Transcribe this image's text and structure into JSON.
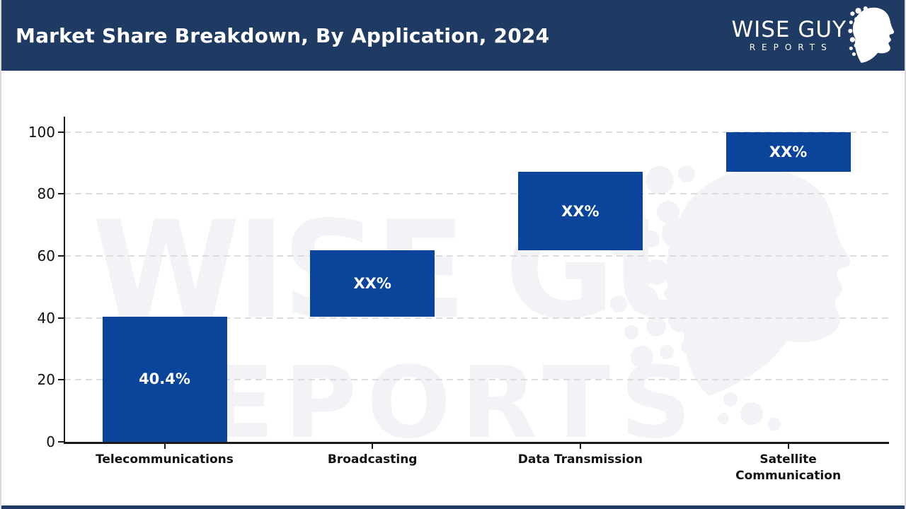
{
  "header": {
    "title": "Market Share Breakdown, By Application, 2024"
  },
  "logo": {
    "line1": "WISE GUY",
    "line2": "REPORTS",
    "face_icon": "dotted-head-profile"
  },
  "watermark": {
    "line1": "WISE GUY",
    "line2": "REPORTS",
    "face_icon": "dotted-head-profile"
  },
  "colors": {
    "header_bg": "#1f3a63",
    "bar_blue": "#0a459b",
    "grid_gray": "#dcdcdc",
    "axis_black": "#1a1a1a",
    "watermark_gray": "#f2f3f6",
    "label_white": "#ffffff"
  },
  "chart_data": {
    "type": "bar",
    "subtype": "waterfall",
    "title": "Market Share Breakdown, By Application, 2024",
    "xlabel": "",
    "ylabel": "",
    "categories": [
      "Telecommunications",
      "Broadcasting",
      "Data Transmission",
      "Satellite Communication"
    ],
    "segments": [
      {
        "category": "Telecommunications",
        "start": 0,
        "end": 40.4,
        "label": "40.4%"
      },
      {
        "category": "Broadcasting",
        "start": 40.4,
        "end": 61.7,
        "label": "XX%"
      },
      {
        "category": "Data Transmission",
        "start": 61.7,
        "end": 87.1,
        "label": "XX%"
      },
      {
        "category": "Satellite Communication",
        "start": 87.1,
        "end": 100,
        "label": "XX%"
      }
    ],
    "ylim": [
      0,
      100
    ],
    "yticks": [
      0,
      20,
      40,
      60,
      80,
      100
    ],
    "grid": "horizontal dashed",
    "legend": "none"
  }
}
